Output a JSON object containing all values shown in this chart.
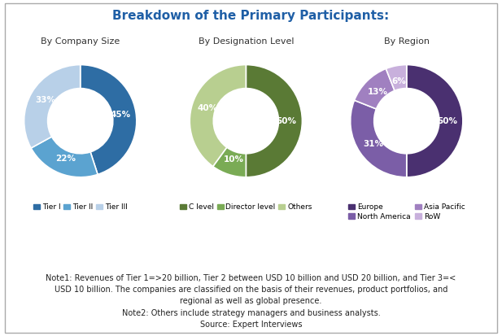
{
  "title": "Breakdown of the Primary Participants:",
  "title_color": "#1f5fa6",
  "title_fontsize": 11,
  "background_color": "#ffffff",
  "chart1_title": "By Company Size",
  "chart1_labels": [
    "Tier I",
    "Tier II",
    "Tier III"
  ],
  "chart1_values": [
    45,
    22,
    33
  ],
  "chart1_colors": [
    "#2e6da4",
    "#5ba3d0",
    "#b8d0e8"
  ],
  "chart2_title": "By Designation Level",
  "chart2_labels": [
    "C level",
    "Director level",
    "Others"
  ],
  "chart2_values": [
    50,
    10,
    40
  ],
  "chart2_colors": [
    "#5a7a35",
    "#7aab55",
    "#b8cf90"
  ],
  "chart3_title": "By Region",
  "chart3_labels": [
    "Europe",
    "North America",
    "Asia Pacific",
    "RoW"
  ],
  "chart3_values": [
    50,
    31,
    13,
    6
  ],
  "chart3_colors": [
    "#4a3070",
    "#7b5ea7",
    "#a080c0",
    "#c8b0dc"
  ],
  "note_text": "Note1: Revenues of Tier 1=>20 billion, Tier 2 between USD 10 billion and USD 20 billion, and Tier 3=<\nUSD 10 billion. The companies are classified on the basis of their revenues, product portfolios, and\nregional as well as global presence.\nNote2: Others include strategy managers and business analysts.\nSource: Expert Interviews",
  "note_fontsize": 7,
  "note_color": "#222222",
  "border_color": "#aaaaaa"
}
